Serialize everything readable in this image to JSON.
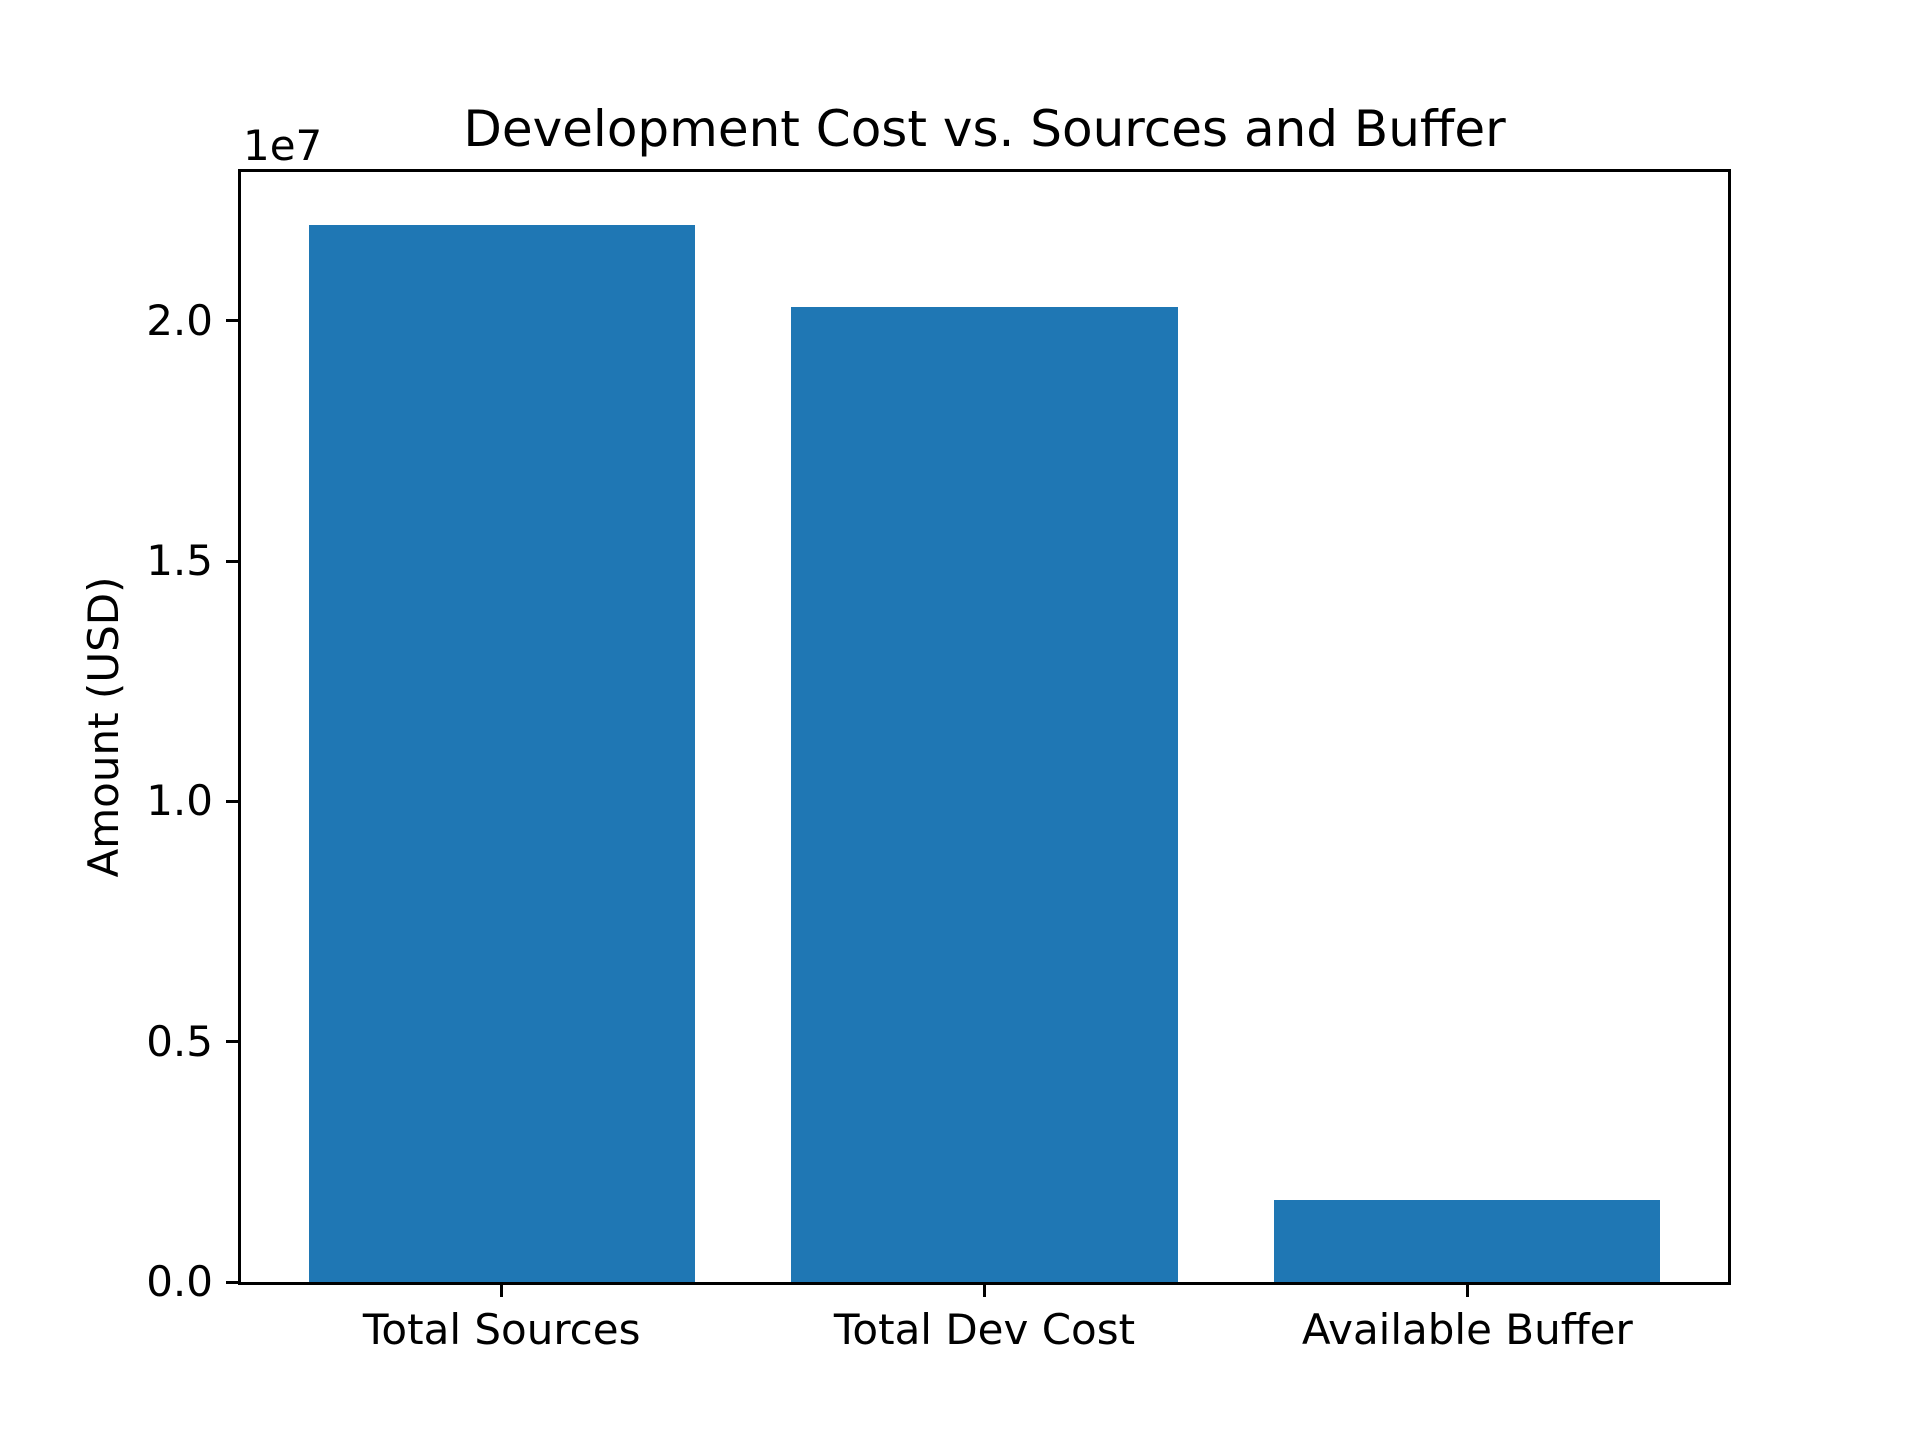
{
  "chart_data": {
    "type": "bar",
    "title": "Development Cost vs. Sources and Buffer",
    "categories": [
      "Total Sources",
      "Total Dev Cost",
      "Available Buffer"
    ],
    "values": [
      22000000,
      20300000,
      1700000
    ],
    "xlabel": "",
    "ylabel": "Amount (USD)",
    "ylim": [
      0,
      23100000
    ],
    "yticks_values": [
      0,
      5000000,
      10000000,
      15000000,
      20000000
    ],
    "ytick_labels": [
      "0.0",
      "0.5",
      "1.0",
      "1.5",
      "2.0"
    ],
    "y_offset_text": "1e7",
    "bar_color": "#1f77b4",
    "bar_width_fraction": 0.8,
    "grid": false,
    "legend": null,
    "text_color": "#000000",
    "spine_color": "#000000"
  }
}
